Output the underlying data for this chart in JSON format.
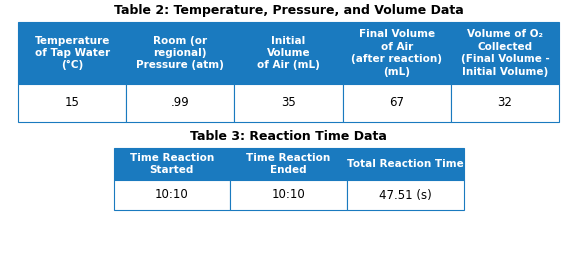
{
  "table2_title": "Table 2: Temperature, Pressure, and Volume Data",
  "table3_title": "Table 3: Reaction Time Data",
  "header_bg": "#1a7abf",
  "header_text_color": "#ffffff",
  "row_bg": "#ffffff",
  "row_text_color": "#000000",
  "border_color": "#1a7abf",
  "title_color": "#000000",
  "table2_headers": [
    "Temperature\nof Tap Water\n(°C)",
    "Room (or\nregional)\nPressure (atm)",
    "Initial\nVolume\nof Air (mL)",
    "Final Volume\nof Air\n(after reaction)\n(mL)",
    "Volume of O₂\nCollected\n(Final Volume -\nInitial Volume)"
  ],
  "table2_rows": [
    [
      "15",
      ".99",
      "35",
      "67",
      "32"
    ]
  ],
  "table3_headers": [
    "Time Reaction\nStarted",
    "Time Reaction\nEnded",
    "Total Reaction Time"
  ],
  "table3_rows": [
    [
      "10:10",
      "10:10",
      "47.51 (s)"
    ]
  ],
  "header_fontsize": 7.5,
  "row_fontsize": 8.5,
  "title_fontsize": 9.0,
  "fig_width": 5.77,
  "fig_height": 2.79,
  "dpi": 100
}
